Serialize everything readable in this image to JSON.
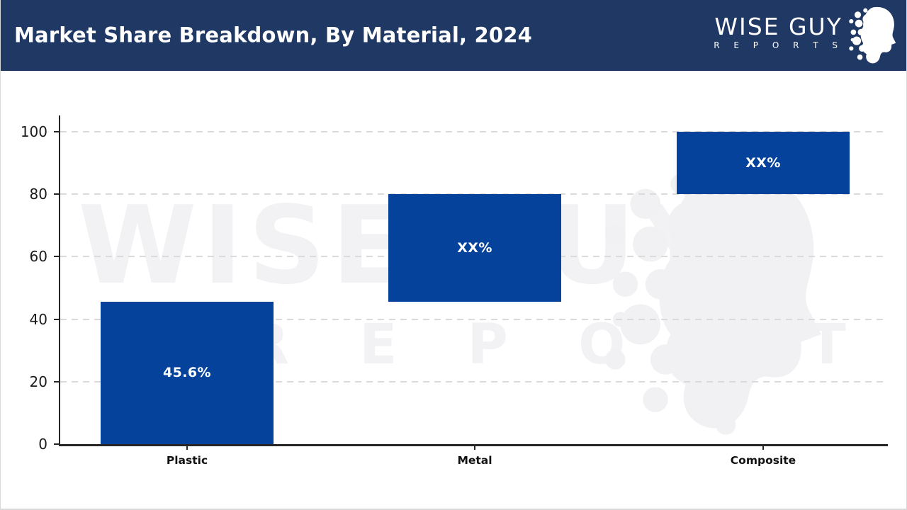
{
  "header": {
    "title": "Market Share Breakdown, By Material, 2024",
    "bg_color": "#203864",
    "logo": {
      "line1": "WISE GUY",
      "line2": "R E P O R T S",
      "head_icon": "dotted-head-profile"
    }
  },
  "chart_data": {
    "type": "bar",
    "variant": "waterfall",
    "title": "Market Share Breakdown, By Material, 2024",
    "categories": [
      "Plastic",
      "Metal",
      "Composite"
    ],
    "segments": [
      {
        "category": "Plastic",
        "start": 0,
        "end": 45.6,
        "label": "45.6%"
      },
      {
        "category": "Metal",
        "start": 45.6,
        "end": 80,
        "label": "XX%"
      },
      {
        "category": "Composite",
        "start": 80,
        "end": 100,
        "label": "XX%"
      }
    ],
    "yticks": [
      0,
      20,
      40,
      60,
      80,
      100
    ],
    "ylim": [
      0,
      105
    ],
    "xlabel": "",
    "ylabel": "",
    "legend": "none",
    "grid": {
      "axis": "y",
      "style": "dashed",
      "color": "#dbdbdb"
    },
    "bar_color": "#05429B",
    "label_color": "#ffffff",
    "watermark": {
      "line1": "WISE GUY",
      "line2": "R E P O R T S"
    }
  }
}
